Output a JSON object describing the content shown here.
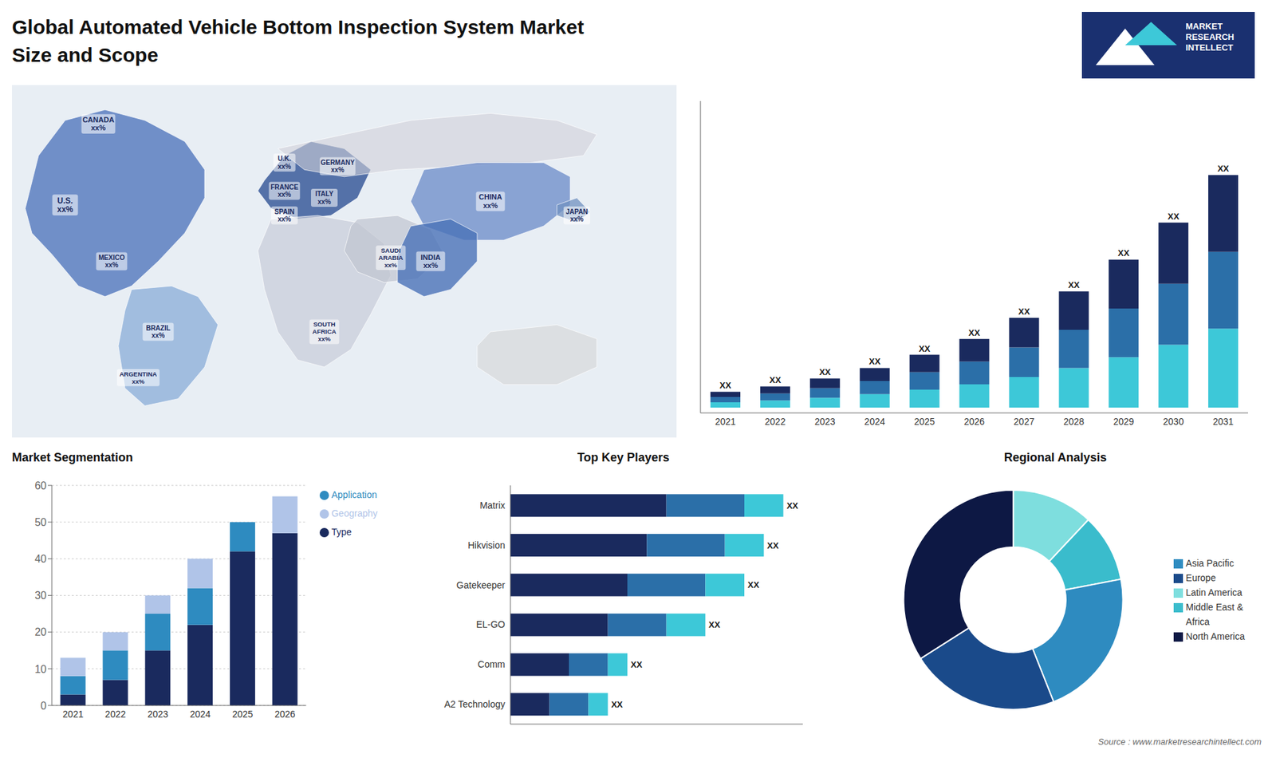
{
  "title": "Global Automated Vehicle Bottom Inspection System Market\nSize and Scope",
  "annotations": [
    "MARKET",
    "RESEARCH",
    "INTELLECT",
    "Source : www.marketresearchintellect.com"
  ],
  "chart_data": [
    {
      "type": "map",
      "annotations": [
        "CANADA\nxx%",
        "U.S.\nxx%",
        "MEXICO\nxx%",
        "BRAZIL\nxx%",
        "ARGENTINA\nxx%",
        "U.K.\nxx%",
        "FRANCE\nxx%",
        "GERMANY\nxx%",
        "SPAIN\nxx%",
        "ITALY\nxx%",
        "SAUDI\nARABIA\nxx%",
        "SOUTH\nAFRICA\nxx%",
        "CHINA\nxx%",
        "INDIA\nxx%",
        "JAPAN\nxx%"
      ]
    },
    {
      "type": "bar",
      "stacked": true,
      "categories": [
        "2021",
        "2022",
        "2023",
        "2024",
        "2025",
        "2026",
        "2027",
        "2028",
        "2029",
        "2030",
        "2031"
      ],
      "series": [
        {
          "color": "#3dc8d8",
          "values": [
            1.02,
            1.36,
            1.87,
            2.55,
            3.4,
            4.42,
            5.78,
            7.48,
            9.52,
            11.9,
            14.96
          ]
        },
        {
          "color": "#2b6fa8",
          "values": [
            0.99,
            1.32,
            1.815,
            2.475,
            3.3,
            4.29,
            5.61,
            7.26,
            9.24,
            11.55,
            14.52
          ]
        },
        {
          "color": "#1a2a5e",
          "values": [
            0.99,
            1.32,
            1.815,
            2.475,
            3.3,
            4.29,
            5.61,
            7.26,
            9.24,
            11.55,
            14.52
          ]
        }
      ],
      "ylim": [
        -1,
        58
      ],
      "tick_labels": "x",
      "grid": false,
      "annotations": [
        "XX",
        "XX",
        "XX",
        "XX",
        "XX",
        "XX",
        "XX",
        "XX",
        "XX",
        "XX",
        "XX"
      ]
    },
    {
      "type": "bar",
      "title": "Market Segmentation",
      "stacked": true,
      "categories": [
        "2021",
        "2022",
        "2023",
        "2024",
        "2025",
        "2026"
      ],
      "series": [
        {
          "name": "Type",
          "color": "#1a2a5e",
          "values": [
            3,
            7,
            15,
            22,
            42,
            47
          ]
        },
        {
          "name": "Application",
          "color": "#2e8bc0",
          "values": [
            5,
            8,
            10,
            10,
            8,
            0
          ]
        },
        {
          "name": "Geography",
          "color": "#b0c4e8",
          "values": [
            5,
            5,
            5,
            8,
            0,
            10
          ]
        }
      ],
      "ylim": [
        0,
        60
      ],
      "yticks": [
        0,
        10,
        20,
        30,
        40,
        50,
        60
      ],
      "grid": true,
      "legend": "right"
    },
    {
      "type": "bar",
      "title": "Top Key Players",
      "orientation": "horizontal",
      "stacked": true,
      "categories": [
        "Matrix",
        "Hikvision",
        "Gatekeeper",
        "EL-GO",
        "Comm",
        "A2 Technology"
      ],
      "series": [
        {
          "color": "#1a2a5e",
          "values": [
            8,
            7,
            6,
            5,
            3,
            2
          ]
        },
        {
          "color": "#2b6fa8",
          "values": [
            4,
            4,
            4,
            3,
            2,
            2
          ]
        },
        {
          "color": "#3dc8d8",
          "values": [
            2,
            2,
            2,
            2,
            1,
            1
          ]
        }
      ],
      "xlim": [
        0,
        15
      ],
      "tick_labels": "y",
      "grid": false,
      "annotations": [
        "XX",
        "XX",
        "XX",
        "XX",
        "XX",
        "XX"
      ]
    },
    {
      "type": "pie",
      "title": "Regional Analysis",
      "categories": [
        "Latin America",
        "Middle East &\nAfrica",
        "Asia Pacific",
        "Europe",
        "North America"
      ],
      "values": [
        12,
        10,
        22,
        22,
        34
      ],
      "colors": [
        "#7edede",
        "#3abccc",
        "#2e8bc0",
        "#1a4a8a",
        "#0d1844"
      ],
      "legend": "right"
    }
  ]
}
